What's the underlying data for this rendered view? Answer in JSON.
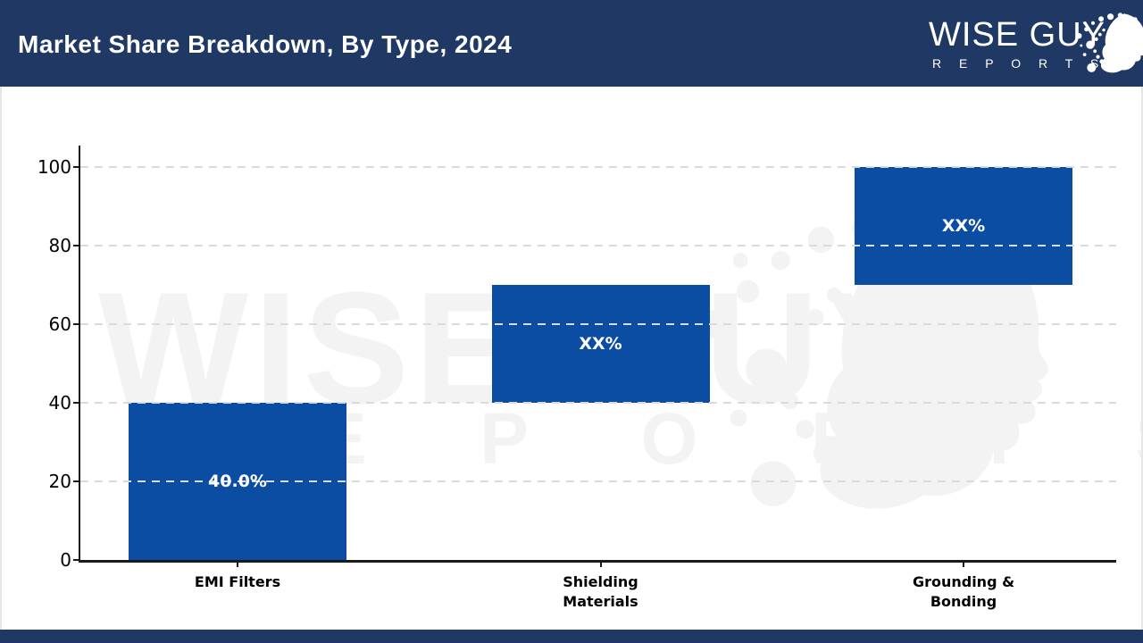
{
  "header": {
    "title": "Market Share Breakdown, By Type, 2024",
    "logo": {
      "line1": "WISE GUY",
      "line2": "R E P O R T S"
    }
  },
  "watermark": {
    "line1": "WISE GUY",
    "line2": "R E P O R T S"
  },
  "colors": {
    "header_bg": "#1F3864",
    "bar": "#0B4DA2",
    "bar_label": "#FFFFFF",
    "gridline": "#DBDBDB",
    "axis": "#1A1A1A",
    "watermark": "#F3F3F3"
  },
  "chart_data": {
    "type": "bar",
    "variant": "floating-segment-breakdown",
    "title": "Market Share Breakdown, By Type, 2024",
    "categories": [
      "EMI Filters",
      "Shielding\nMaterials",
      "Grounding &\nBonding"
    ],
    "segments": [
      {
        "category": "EMI Filters",
        "start": 0,
        "end": 40,
        "label": "40.0%"
      },
      {
        "category": "Shielding Materials",
        "start": 40,
        "end": 70,
        "label": "XX%"
      },
      {
        "category": "Grounding & Bonding",
        "start": 70,
        "end": 100,
        "label": "XX%"
      }
    ],
    "xlabel": "",
    "ylabel": "",
    "ylim": [
      0,
      100
    ],
    "yticks": [
      0,
      20,
      40,
      60,
      80,
      100
    ],
    "grid": true,
    "grid_style": "dashed-horizontal",
    "grid_above_bars": true,
    "legend": false
  }
}
